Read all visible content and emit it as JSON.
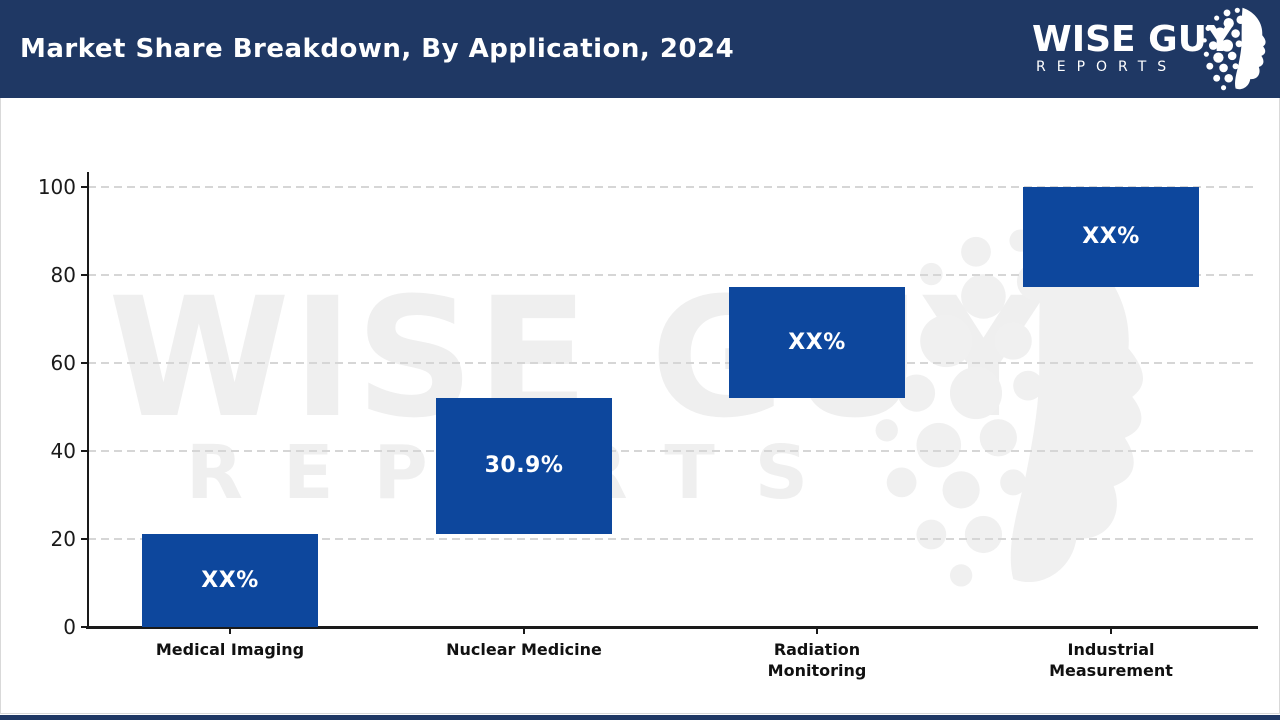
{
  "header": {
    "title": "Market Share Breakdown, By Application, 2024",
    "logo": {
      "brand_line1": "WISE GUY",
      "brand_line2": "REPORTS"
    }
  },
  "watermark": {
    "line1": "WISE GUY",
    "line2": "REPORTS"
  },
  "colors": {
    "header_bg": "#1f3864",
    "bar": "#0d479d",
    "bar_label": "#ffffff",
    "grid": "#d6d6d6",
    "axis": "#1a1a1a",
    "watermark": "#efefef"
  },
  "chart_data": {
    "type": "bar",
    "subtype": "waterfall-floating-bars",
    "title": "Market Share Breakdown, By Application, 2024",
    "categories": [
      "Medical Imaging",
      "Nuclear Medicine",
      "Radiation Monitoring",
      "Industrial Measurement"
    ],
    "tick_labels": [
      "Medical Imaging",
      "Nuclear Medicine",
      "Radiation\nMonitoring",
      "Industrial\nMeasurement"
    ],
    "segments": [
      {
        "category": "Medical Imaging",
        "start": 0,
        "end": 21.2,
        "value": 21.2,
        "label": "XX%"
      },
      {
        "category": "Nuclear Medicine",
        "start": 21.2,
        "end": 52.1,
        "value": 30.9,
        "label": "30.9%"
      },
      {
        "category": "Radiation Monitoring",
        "start": 52.1,
        "end": 77.3,
        "value": 25.2,
        "label": "XX%"
      },
      {
        "category": "Industrial Measurement",
        "start": 77.3,
        "end": 100,
        "value": 22.7,
        "label": "XX%"
      }
    ],
    "ylim": [
      0,
      100
    ],
    "yticks": [
      0,
      20,
      40,
      60,
      80,
      100
    ],
    "xlabel": "",
    "ylabel": "",
    "grid": "horizontal-dashed",
    "legend": "none"
  }
}
